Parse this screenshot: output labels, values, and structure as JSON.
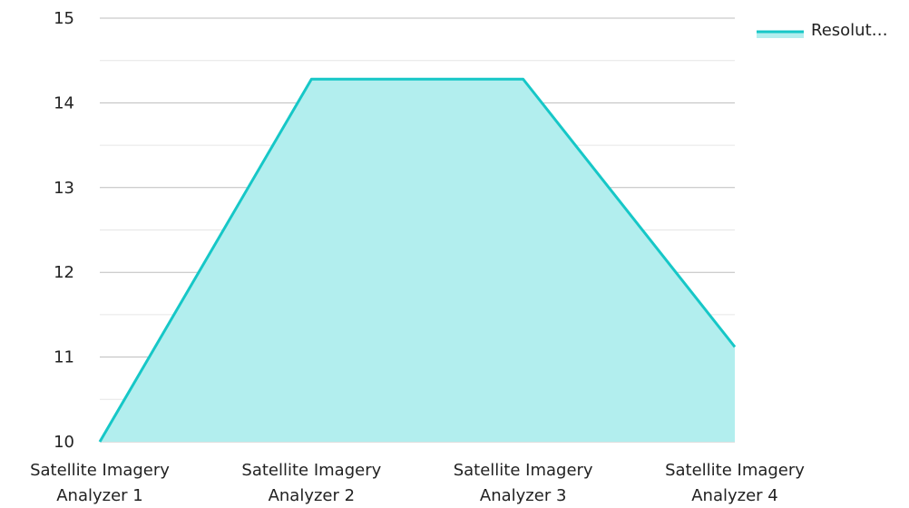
{
  "chart_data": {
    "type": "area",
    "categories": [
      [
        "Satellite Imagery",
        "Analyzer 1"
      ],
      [
        "Satellite Imagery",
        "Analyzer 2"
      ],
      [
        "Satellite Imagery",
        "Analyzer 3"
      ],
      [
        "Satellite Imagery",
        "Analyzer 4"
      ]
    ],
    "series": [
      {
        "name": "Resolut…",
        "values": [
          10,
          14.28,
          14.28,
          11.12
        ]
      }
    ],
    "ylim": [
      10,
      15
    ],
    "yticks": [
      10,
      11,
      12,
      13,
      14,
      15
    ],
    "y_minor_step": 0.5,
    "grid": true,
    "legend": "top-right",
    "colors": {
      "line": "#16c7c7",
      "fill": "#b2eeee",
      "grid_major": "#bdbdbd",
      "grid_minor": "#e6e6e6"
    }
  }
}
